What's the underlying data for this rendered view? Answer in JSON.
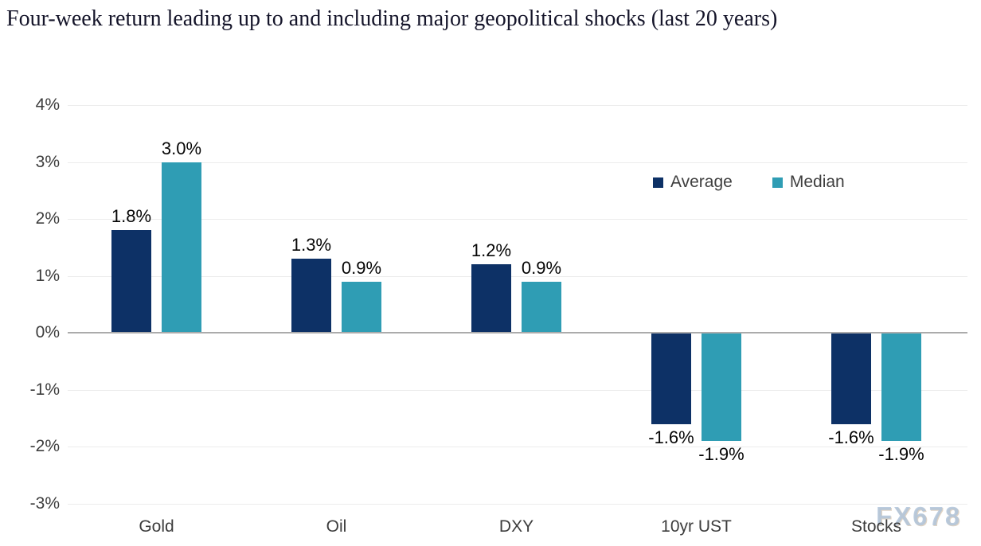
{
  "title": "Four-week return leading up to and including major geopolitical shocks (last 20 years)",
  "watermark": "FX678",
  "legend": {
    "items": [
      {
        "label": "Average",
        "color": "#0d3166"
      },
      {
        "label": "Median",
        "color": "#2f9db4"
      }
    ]
  },
  "chart_data": {
    "type": "bar",
    "title": "Four-week return leading up to and including major geopolitical shocks (last 20 years)",
    "categories": [
      "Gold",
      "Oil",
      "DXY",
      "10yr UST",
      "Stocks"
    ],
    "series": [
      {
        "name": "Average",
        "color": "#0d3166",
        "values": [
          1.8,
          1.3,
          1.2,
          -1.6,
          -1.6
        ],
        "labels": [
          "1.8%",
          "1.3%",
          "1.2%",
          "-1.6%",
          "-1.6%"
        ]
      },
      {
        "name": "Median",
        "color": "#2f9db4",
        "values": [
          3.0,
          0.9,
          0.9,
          -1.9,
          -1.9
        ],
        "labels": [
          "3.0%",
          "0.9%",
          "0.9%",
          "-1.9%",
          "-1.9%"
        ]
      }
    ],
    "y_axis": {
      "min": -3,
      "max": 4,
      "step": 1,
      "tick_labels": [
        "4%",
        "3%",
        "2%",
        "1%",
        "0%",
        "-1%",
        "-2%",
        "-3%"
      ]
    },
    "xlabel": "",
    "ylabel": "",
    "grid": true,
    "legend_position": "upper-right",
    "colors": {
      "grid": "#ececec",
      "zero_line": "#ababab",
      "axis_text": "#3d3d3d",
      "data_label": "#060606"
    }
  }
}
